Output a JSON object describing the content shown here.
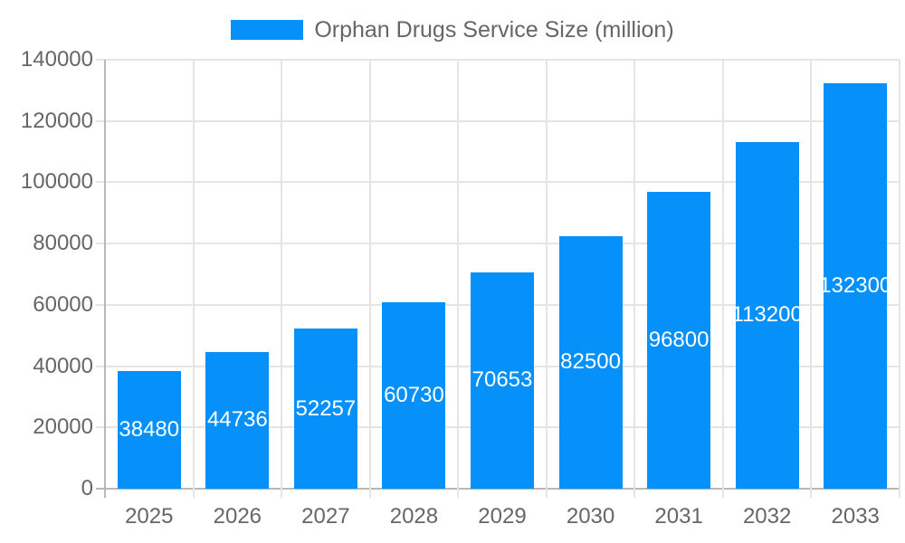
{
  "legend": {
    "label": "Orphan Drugs Service Size (million)"
  },
  "colors": {
    "bar": "#0590FA",
    "axis_text": "#666666",
    "grid_line": "#E5E5E5",
    "zero_line": "#B8B8B8",
    "data_label": "#FFFFFF",
    "background": "#FFFFFF"
  },
  "chart_data": {
    "type": "bar",
    "title": "Orphan Drugs Service Size (million)",
    "categories": [
      "2025",
      "2026",
      "2027",
      "2028",
      "2029",
      "2030",
      "2031",
      "2032",
      "2033"
    ],
    "series": [
      {
        "name": "Orphan Drugs Service Size (million)",
        "values": [
          38480,
          44736,
          52257,
          60730,
          70653,
          82500,
          96800,
          113200,
          132300
        ]
      }
    ],
    "xlabel": "",
    "ylabel": "",
    "ylim": [
      0,
      140000
    ],
    "ytick_step": 20000,
    "ytick_labels": [
      "0",
      "20000",
      "40000",
      "60000",
      "80000",
      "100000",
      "120000",
      "140000"
    ],
    "grid": true,
    "legend_position": "top",
    "data_labels": {
      "position": "center",
      "inside_bar": true
    }
  }
}
